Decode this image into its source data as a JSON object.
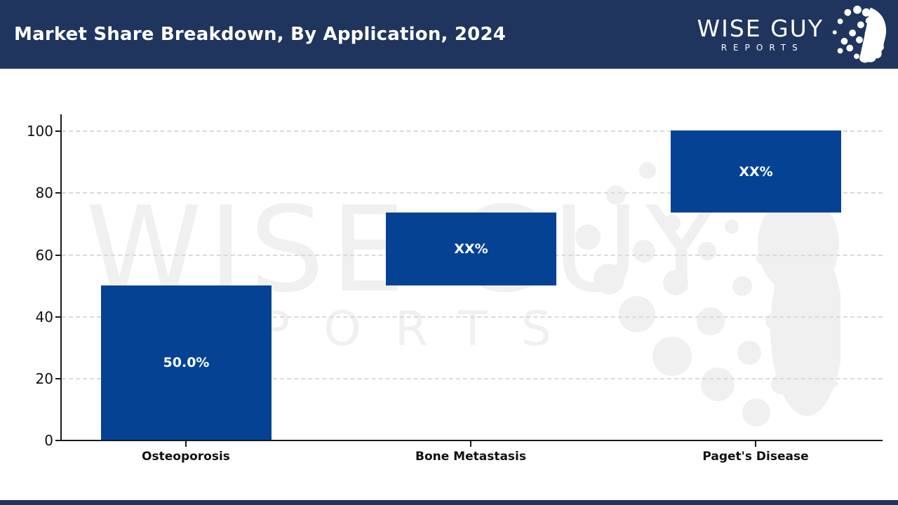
{
  "header": {
    "title": "Market Share Breakdown, By Application, 2024",
    "logo": {
      "line1": "WISE GUY",
      "line2": "REPORTS"
    }
  },
  "watermark": {
    "line1": "WISE GUY",
    "line2": "REPORTS"
  },
  "colors": {
    "header_bg": "#1f355e",
    "footer_bg": "#1f355e",
    "bar": "#054294",
    "grid": "#d9d9d9",
    "axis": "#1a1a1a",
    "bar_label": "#ffffff",
    "watermark": "#f0f0f0"
  },
  "chart_data": {
    "type": "bar",
    "subtype": "waterfall_stacked_segments",
    "title": "Market Share Breakdown, By Application, 2024",
    "categories": [
      "Osteoporosis",
      "Bone Metastasis",
      "Paget's Disease"
    ],
    "segments": [
      {
        "category": "Osteoporosis",
        "label": "50.0%",
        "start": 0,
        "end": 50
      },
      {
        "category": "Bone Metastasis",
        "label": "XX%",
        "start": 50,
        "end": 73.5
      },
      {
        "category": "Paget's Disease",
        "label": "XX%",
        "start": 73.5,
        "end": 100
      }
    ],
    "yticks": [
      0,
      20,
      40,
      60,
      80,
      100
    ],
    "ylim": [
      0,
      105
    ],
    "xlabel": "",
    "ylabel": "",
    "grid": "horizontal-dashed",
    "legend": "none"
  }
}
